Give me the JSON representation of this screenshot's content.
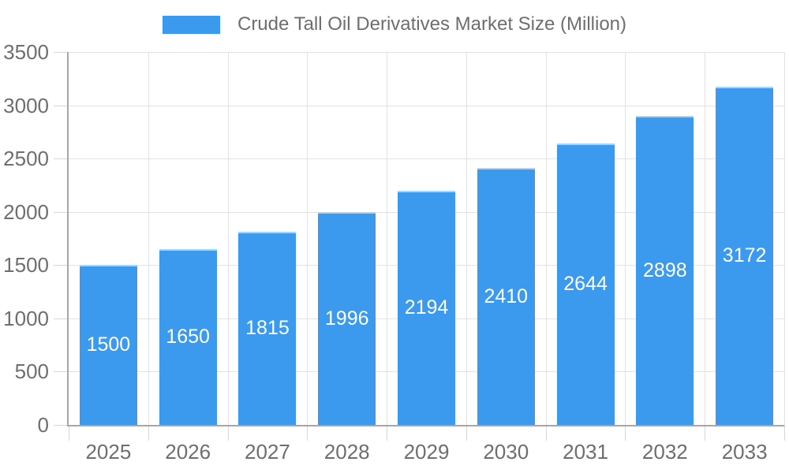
{
  "chart_data": {
    "type": "bar",
    "title": "Crude Tall Oil Derivatives Market Size (Million)",
    "categories": [
      "2025",
      "2026",
      "2027",
      "2028",
      "2029",
      "2030",
      "2031",
      "2032",
      "2033"
    ],
    "values": [
      1500,
      1650,
      1815,
      1996,
      2194,
      2410,
      2644,
      2898,
      3172
    ],
    "xlabel": "",
    "ylabel": "",
    "ylim": [
      0,
      3500
    ],
    "ytick_step": 500,
    "grid": true,
    "legend_position": "top",
    "value_labels": "inside-center",
    "colors": {
      "bar": "#3B9AED",
      "bar_top_edge": "#A8D4F5",
      "value_label": "#FFFFFF",
      "axis_line": "#A6A6A6",
      "grid_line": "#E2E2E2",
      "tick_mark": "#D6D6D6",
      "tick_label": "#6E6E6E"
    }
  },
  "legend": {
    "label": "Crude Tall Oil Derivatives Market Size (Million)",
    "swatch_color": "#3B9AED"
  }
}
